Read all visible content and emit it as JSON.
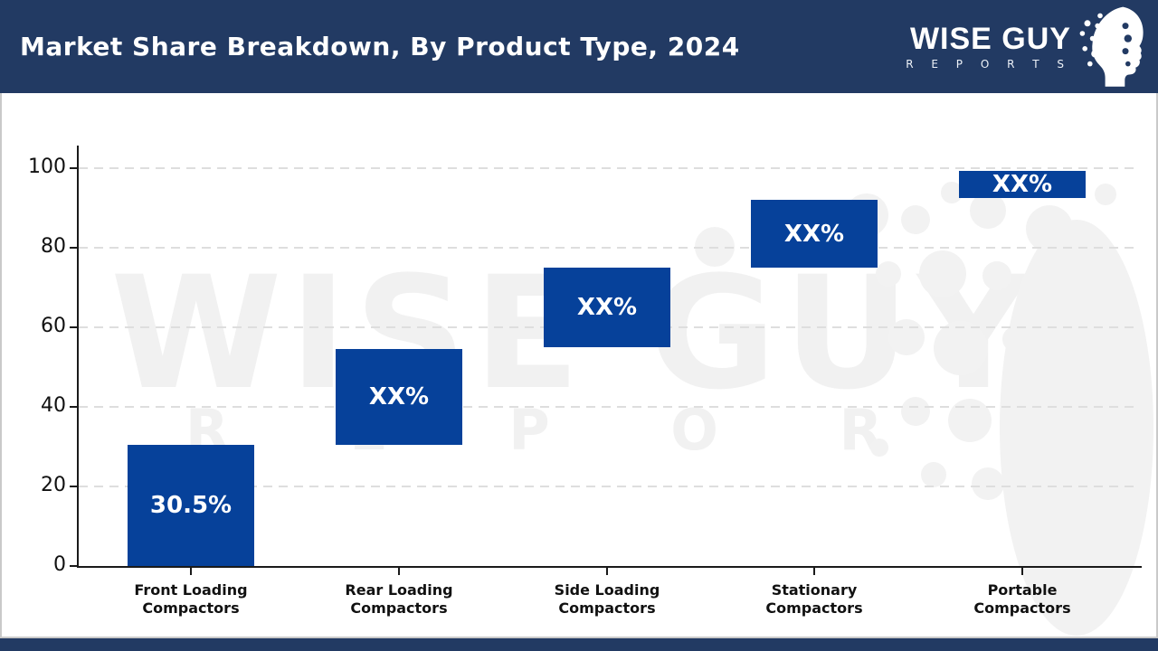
{
  "header": {
    "title": "Market Share Breakdown, By Product Type, 2024",
    "logo": {
      "brand": "WISE GUY",
      "subbrand": "R E P O R T S"
    }
  },
  "watermark": {
    "line1": "WISE GUY",
    "line2": "R E P O R T S"
  },
  "chart_data": {
    "type": "bar",
    "variant": "waterfall",
    "title": "Market Share Breakdown, By Product Type, 2024",
    "categories": [
      "Front Loading\nCompactors",
      "Rear Loading\nCompactors",
      "Side Loading\nCompactors",
      "Stationary\nCompactors",
      "Portable\nCompactors"
    ],
    "segments": [
      {
        "start": 0,
        "end": 30.5,
        "label": "30.5%"
      },
      {
        "start": 30.5,
        "end": 54.5,
        "label": "XX%"
      },
      {
        "start": 55,
        "end": 75,
        "label": "XX%"
      },
      {
        "start": 75,
        "end": 92,
        "label": "XX%"
      },
      {
        "start": 92.5,
        "end": 99.3,
        "label": "XX%"
      }
    ],
    "ylim": [
      0,
      100
    ],
    "yticks": [
      0,
      20,
      40,
      60,
      80,
      100
    ],
    "grid": "horizontal-dashed",
    "legend": "none",
    "colors": {
      "bar": "#06419a",
      "bar_label": "#ffffff",
      "header_bg": "#223a63",
      "footer_bg": "#223a63",
      "grid": "#dedede",
      "axis": "#1a1a1a",
      "tick_label": "#111111",
      "watermark": "#f1f1f1",
      "figure_border": "#c9c9c9"
    }
  }
}
